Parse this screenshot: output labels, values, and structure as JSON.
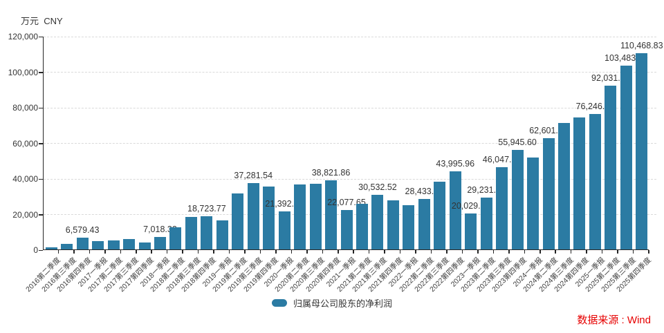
{
  "header": {
    "unit_label": "万元  CNY"
  },
  "footer": {
    "source_text": "数据来源 : Wind"
  },
  "legend": {
    "label": "归属母公司股东的净利润"
  },
  "colors": {
    "bar": "#2b7ba3",
    "grid": "#d9d9d9",
    "axis": "#262626",
    "text": "#333333",
    "x_label_text": "#404040",
    "source_text": "#e60000",
    "background": "#ffffff"
  },
  "chart_data": {
    "type": "bar",
    "title": "",
    "series_name": "归属母公司股东的净利润",
    "xlabel": "",
    "ylabel": "万元 CNY",
    "ylim": [
      0,
      120000
    ],
    "grid": "horizontal-dashed",
    "legend_position": "bottom-center",
    "y_ticks": [
      {
        "value": 0,
        "label": "0"
      },
      {
        "value": 20000,
        "label": "20,000"
      },
      {
        "value": 40000,
        "label": "40,000"
      },
      {
        "value": 60000,
        "label": "60,000"
      },
      {
        "value": 80000,
        "label": "80,000"
      },
      {
        "value": 100000,
        "label": "100,000"
      },
      {
        "value": 120000,
        "label": "120,000"
      }
    ],
    "categories": [
      "2016第二季度",
      "2016第三季度",
      "2016第四季度",
      "2017一季报",
      "2017第二季度",
      "2017第三季度",
      "2017第四季度",
      "2018一季报",
      "2018第二季度",
      "2018第三季度",
      "2018第四季度",
      "2019一季报",
      "2019第二季度",
      "2019第三季度",
      "2019第四季度",
      "2020一季报",
      "2020第二季度",
      "2020第三季度",
      "2020第四季度",
      "2021一季报",
      "2021第二季度",
      "2021第三季度",
      "2021第四季度",
      "2022一季报",
      "2022第二季度",
      "2022第三季度",
      "2022第四季度",
      "2023一季报",
      "2023第二季度",
      "2023第三季度",
      "2023第四季度",
      "2024一季报",
      "2024第二季度",
      "2024第三季度",
      "2024第四季度",
      "2025一季报",
      "2025第二季度",
      "2025第三季度",
      "2025第四季度"
    ],
    "values": [
      1200,
      3000,
      6579.43,
      4700,
      5000,
      5800,
      3700,
      7018.33,
      12500,
      18100,
      18723.77,
      16200,
      31500,
      37281.54,
      35300,
      21392.34,
      36500,
      37000,
      38821.86,
      22077.65,
      25600,
      30532.52,
      27500,
      24900,
      28433.85,
      38200,
      43995.96,
      20029.28,
      29231.31,
      46047.64,
      55945.6,
      51500,
      62601.83,
      70900,
      74100,
      76246.54,
      92031.55,
      103483.7,
      110468.83
    ],
    "value_labels": [
      null,
      null,
      "6,579.43",
      null,
      null,
      null,
      null,
      "7,018.33",
      null,
      null,
      "18,723.77",
      null,
      null,
      "37,281.54",
      null,
      "21,392.34",
      null,
      null,
      "38,821.86",
      "22,077.65",
      null,
      "30,532.52",
      null,
      null,
      "28,433.85",
      null,
      "43,995.96",
      "20,029.28",
      "29,231.31",
      "46,047.64",
      "55,945.60",
      null,
      "62,601.83",
      null,
      null,
      "76,246.54",
      "92,031.55",
      "103,483.70",
      "110,468.83"
    ]
  }
}
